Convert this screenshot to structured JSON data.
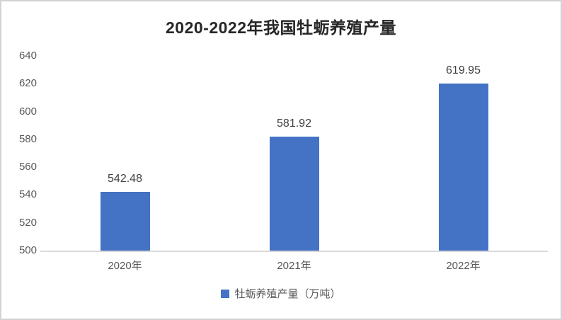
{
  "title": "2020-2022年我国牡蛎养殖产量",
  "legend": {
    "label": "牡蛎养殖产量（万吨）"
  },
  "colors": {
    "bar": "#4472C4",
    "axis_line": "#D9D9D9",
    "tick_label": "#595959",
    "data_label": "#404040",
    "title_text": "#262626",
    "card_border": "#D3D3D3"
  },
  "chart_data": {
    "type": "bar",
    "title": "2020-2022年我国牡蛎养殖产量",
    "categories": [
      "2020年",
      "2021年",
      "2022年"
    ],
    "series": [
      {
        "name": "牡蛎养殖产量（万吨）",
        "values": [
          542.48,
          581.92,
          619.95
        ],
        "data_labels": [
          "542.48",
          "581.92",
          "619.95"
        ],
        "color": "#4472C4"
      }
    ],
    "xlabel": "",
    "ylabel": "",
    "ylim": [
      500,
      640
    ],
    "yticks": [
      500,
      520,
      540,
      560,
      580,
      600,
      620,
      640
    ],
    "grid": false,
    "legend_position": "bottom"
  }
}
